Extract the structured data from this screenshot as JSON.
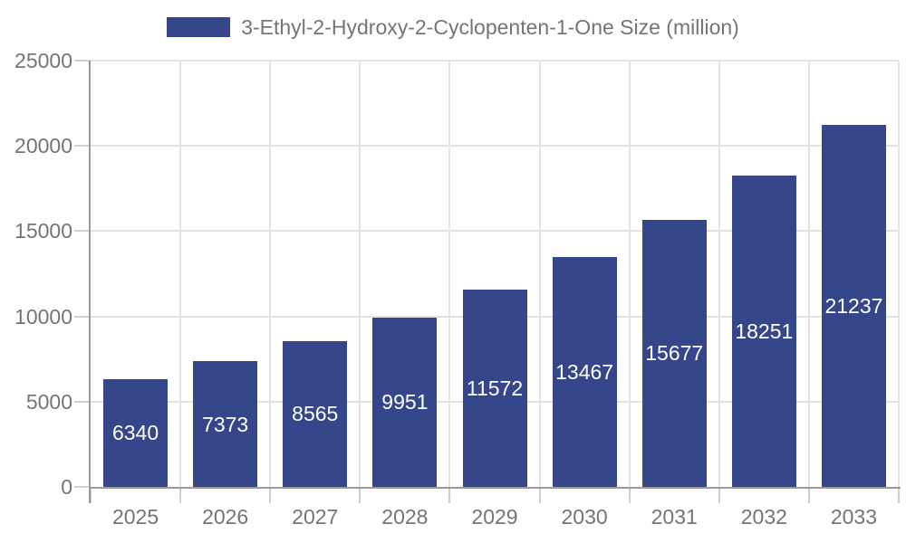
{
  "legend": {
    "label": "3-Ethyl-2-Hydroxy-2-Cyclopenten-1-One Size (million)"
  },
  "chart_data": {
    "type": "bar",
    "title": "3-Ethyl-2-Hydroxy-2-Cyclopenten-1-One Size (million)",
    "categories": [
      "2025",
      "2026",
      "2027",
      "2028",
      "2029",
      "2030",
      "2031",
      "2032",
      "2033"
    ],
    "values": [
      6340,
      7373,
      8565,
      9951,
      11572,
      13467,
      15677,
      18251,
      21237
    ],
    "xlabel": "",
    "ylabel": "",
    "ylim": [
      0,
      25000
    ],
    "yticks": [
      0,
      5000,
      10000,
      15000,
      20000,
      25000
    ],
    "grid": true,
    "legend_position": "top",
    "bar_label_position": "inside-center"
  },
  "colors": {
    "bar": "#36468b",
    "text": "#757575",
    "grid": "#e3e3e3",
    "tick": "#cfcfcf",
    "axis": "#9a9a9a",
    "bar_label": "#ffffff",
    "background": "#ffffff"
  }
}
